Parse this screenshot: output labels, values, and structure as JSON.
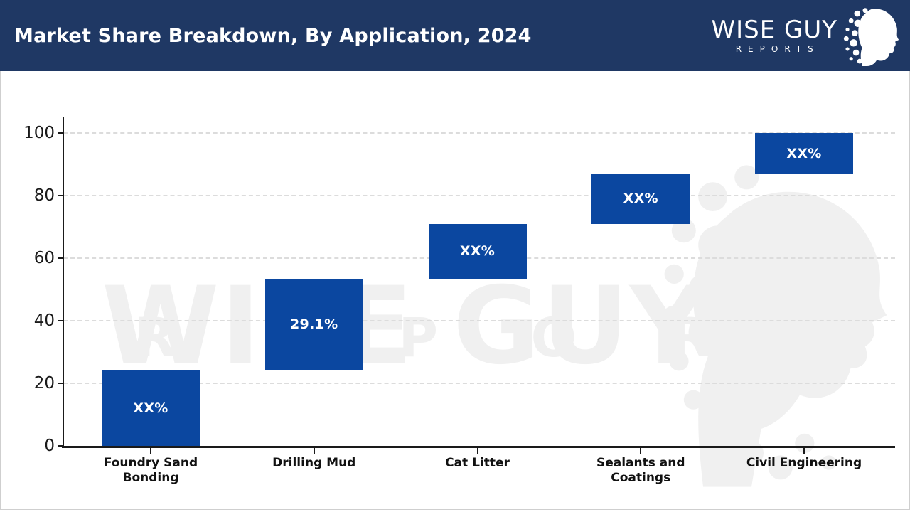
{
  "header": {
    "title": "Market Share Breakdown, By Application, 2024",
    "bg_color": "#1f3864",
    "logo": {
      "line1": "WISE GUY",
      "line2": "REPORTS"
    }
  },
  "watermark": {
    "line1": "WISE GUY",
    "line2": "REPORTS"
  },
  "chart_data": {
    "type": "bar",
    "subtype": "floating-segment-waterfall",
    "title": "Market Share Breakdown, By Application, 2024",
    "categories": [
      "Foundry Sand Bonding",
      "Drilling Mud",
      "Cat Litter",
      "Sealants and Coatings",
      "Civil Engineering"
    ],
    "segments": [
      {
        "category": "Foundry Sand Bonding",
        "start": 0,
        "end": 24.3,
        "label": "XX%"
      },
      {
        "category": "Drilling Mud",
        "start": 24.3,
        "end": 53.4,
        "label": "29.1%"
      },
      {
        "category": "Cat Litter",
        "start": 53.4,
        "end": 71.0,
        "label": "XX%"
      },
      {
        "category": "Sealants and Coatings",
        "start": 71.0,
        "end": 87.0,
        "label": "XX%"
      },
      {
        "category": "Civil Engineering",
        "start": 87.0,
        "end": 100.0,
        "label": "XX%"
      }
    ],
    "xlabel": "",
    "ylabel": "",
    "ylim": [
      0,
      100
    ],
    "yticks": [
      0,
      20,
      40,
      60,
      80,
      100
    ],
    "grid": "dashed-horizontal",
    "legend": "none",
    "bar_color": "#0b47a0",
    "bar_label_color": "#ffffff",
    "axis_color": "#1a1a1a"
  }
}
